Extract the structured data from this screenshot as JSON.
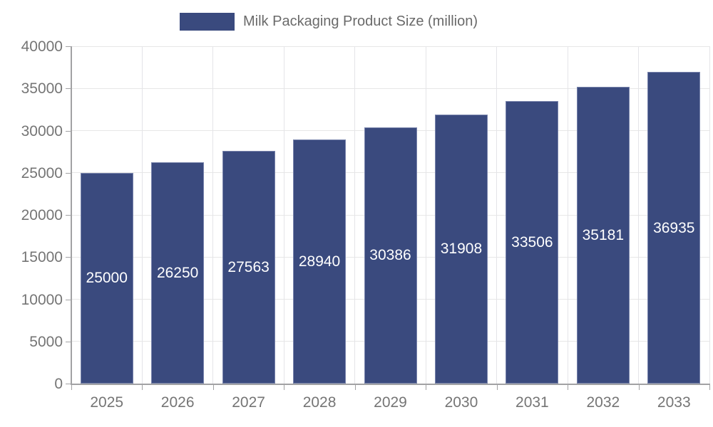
{
  "legend": {
    "label": "Milk Packaging Product Size (million)"
  },
  "chart_data": {
    "type": "bar",
    "title": "Milk Packaging Product Size (million)",
    "series_name": "Milk Packaging Product Size (million)",
    "categories": [
      "2025",
      "2026",
      "2027",
      "2028",
      "2029",
      "2030",
      "2031",
      "2032",
      "2033"
    ],
    "values": [
      25000,
      26250,
      27563,
      28940,
      30386,
      31908,
      33506,
      35181,
      36935
    ],
    "xlabel": "",
    "ylabel": "",
    "ylim": [
      0,
      40000
    ],
    "y_ticks": [
      0,
      5000,
      10000,
      15000,
      20000,
      25000,
      30000,
      35000,
      40000
    ],
    "grid": true,
    "legend_position": "top-center",
    "value_labels": "inside-center"
  },
  "colors": {
    "bar": "#3A4A7E",
    "h_grid": "#E7E7E7",
    "v_grid": "#E4E4E8",
    "axis_line": "#A2A2A4",
    "tick": "#A2A2A4",
    "axis_text": "#757575",
    "legend_text": "#6A6A6A",
    "value_text": "#FFFFFF",
    "background": "#FFFFFF"
  }
}
